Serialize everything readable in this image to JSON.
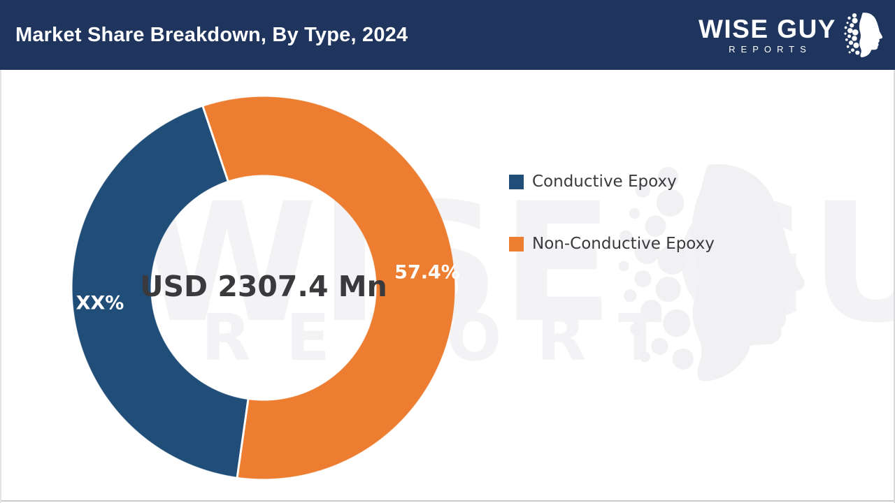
{
  "header": {
    "title": "Market Share Breakdown, By Type, 2024",
    "bg_color": "#1f355e",
    "logo": {
      "wordmark": "WISE GUY",
      "subtitle": "REPORTS"
    }
  },
  "watermark": {
    "line1": "WISE GUY",
    "line2": "REPORTS"
  },
  "chart_data": {
    "type": "pie",
    "style": "donut",
    "title": "Market Share Breakdown, By Type, 2024",
    "center_label": "USD 2307.4 Mn",
    "start_angle_deg": -18.6,
    "outer_radius_px": 274,
    "inner_radius_px": 162,
    "label_radius_px": 235,
    "segments": [
      {
        "name": "Non-Conductive Epoxy",
        "value_pct": 57.4,
        "data_label": "57.4%",
        "color": "#ed7d31"
      },
      {
        "name": "Conductive Epoxy",
        "value_pct": 42.6,
        "data_label": "XX%",
        "color": "#204e78"
      }
    ],
    "legend": {
      "position": "right",
      "items": [
        {
          "label": "Conductive Epoxy",
          "color": "#204e78"
        },
        {
          "label": "Non-Conductive Epoxy",
          "color": "#ed7d31"
        }
      ]
    }
  }
}
